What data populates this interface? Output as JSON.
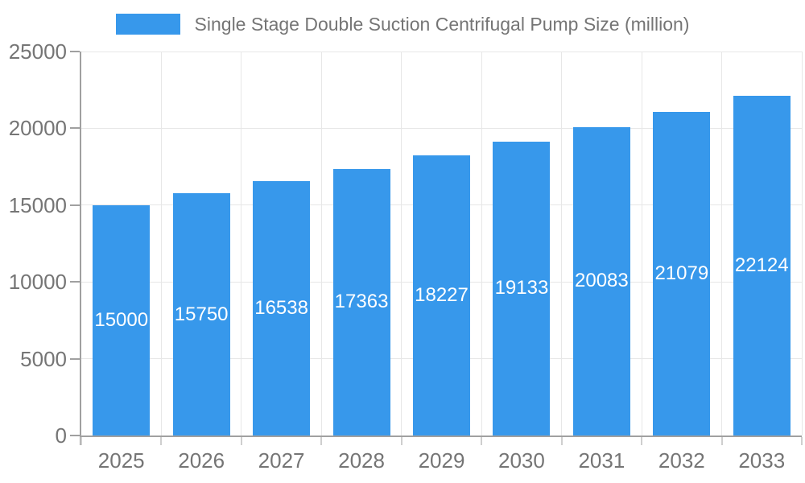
{
  "chart_data": {
    "type": "bar",
    "title": "",
    "series_name": "Single Stage Double Suction Centrifugal Pump Size (million)",
    "categories": [
      "2025",
      "2026",
      "2027",
      "2028",
      "2029",
      "2030",
      "2031",
      "2032",
      "2033"
    ],
    "values": [
      15000,
      15750,
      16538,
      17363,
      18227,
      19133,
      20083,
      21079,
      22124
    ],
    "xlabel": "",
    "ylabel": "",
    "ylim": [
      0,
      25000
    ],
    "yticks": [
      0,
      5000,
      10000,
      15000,
      20000,
      25000
    ],
    "grid": true,
    "legend_position": "top",
    "bar_label_position": "inside-center",
    "colors": {
      "bar": "#3798EB",
      "bar_label": "#FFFFFF",
      "axis": "#A0A0A0",
      "x_tick": "#CFCFCF",
      "grid": "#E7E7E7",
      "tick_label": "#757575",
      "legend_text": "#757575",
      "background": "#FFFFFF"
    }
  }
}
